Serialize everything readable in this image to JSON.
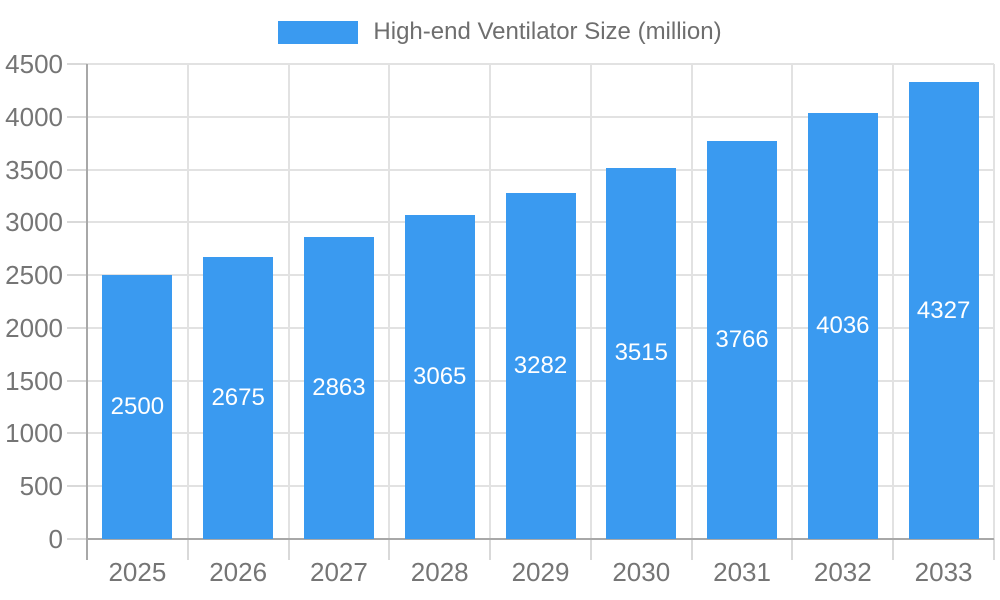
{
  "chart_data": {
    "type": "bar",
    "title": "",
    "legend": "High-end Ventilator Size (million)",
    "legend_position": "top-center",
    "categories": [
      "2025",
      "2026",
      "2027",
      "2028",
      "2029",
      "2030",
      "2031",
      "2032",
      "2033"
    ],
    "values": [
      2500,
      2675,
      2863,
      3065,
      3282,
      3515,
      3766,
      4036,
      4327
    ],
    "xlabel": "",
    "ylabel": "",
    "ylim": [
      0,
      4500
    ],
    "ytick_step": 500,
    "yticks": [
      0,
      500,
      1000,
      1500,
      2000,
      2500,
      3000,
      3500,
      4000,
      4500
    ],
    "grid": true,
    "bar_labels_visible": true,
    "colors": {
      "bar": "#3A9AF0",
      "bar_label": "#FFFFFF",
      "axis_text": "#757575",
      "legend_text": "#6E6E6E",
      "grid_line": "#E2E2E2",
      "tick_line": "#D9D9D9",
      "axis_line": "#A8A8A8",
      "background": "#FFFFFF"
    }
  }
}
